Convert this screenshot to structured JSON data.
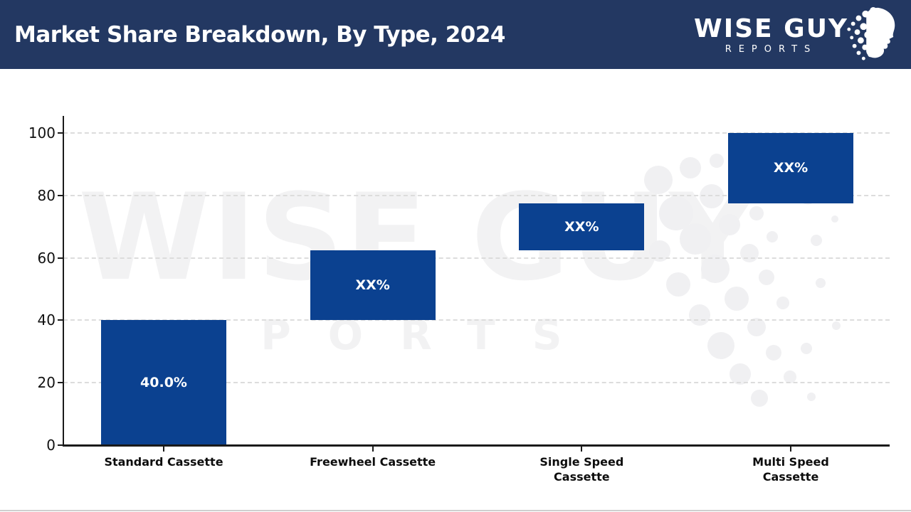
{
  "header": {
    "title": "Market Share Breakdown, By Type, 2024",
    "bg_color": "#233862",
    "logo": {
      "line1": "WISE GUY",
      "line2": "REPORTS"
    }
  },
  "watermark": {
    "line1": "WISE GUY",
    "line2": "REPORTS"
  },
  "chart_data": {
    "type": "bar",
    "subtype": "waterfall",
    "title": "Market Share Breakdown, By Type, 2024",
    "categories": [
      "Standard Cassette",
      "Freewheel Cassette",
      "Single Speed Cassette",
      "Multi Speed Cassette"
    ],
    "segments": [
      {
        "start": 0,
        "end": 40,
        "value": 40,
        "label": "40.0%"
      },
      {
        "start": 40,
        "end": 62.5,
        "value": 22.5,
        "label": "XX%"
      },
      {
        "start": 62.5,
        "end": 77.5,
        "value": 15,
        "label": "XX%"
      },
      {
        "start": 77.5,
        "end": 100,
        "value": 22.5,
        "label": "XX%"
      }
    ],
    "xlabel": "",
    "ylabel": "",
    "ylim": [
      0,
      100
    ],
    "yticks": [
      0,
      20,
      40,
      60,
      80,
      100
    ],
    "grid": {
      "axis": "y",
      "style": "dashed",
      "color": "#dcdcdc"
    },
    "legend": "none",
    "bar_color": "#0b4190",
    "bar_label_color": "#ffffff"
  }
}
